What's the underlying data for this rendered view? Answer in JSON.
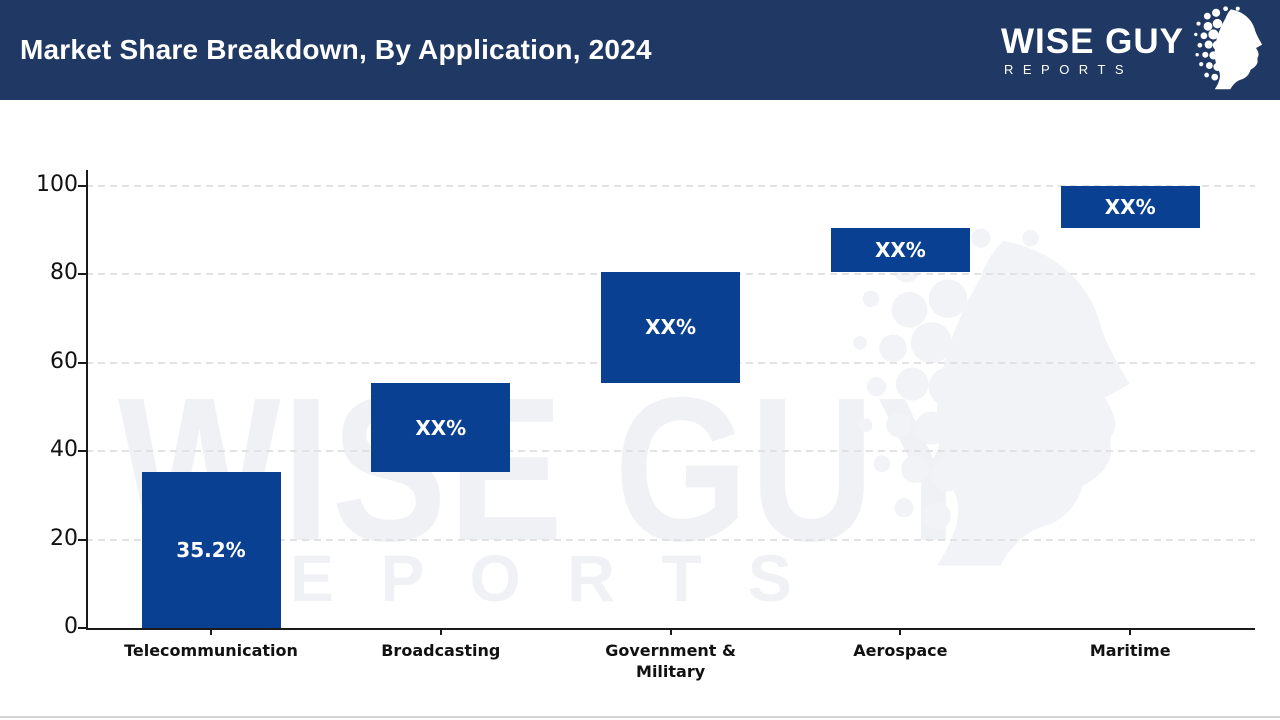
{
  "header": {
    "title": "Market Share Breakdown, By Application, 2024",
    "logo": {
      "brand": "WISE GUY",
      "sub": "REPORTS"
    }
  },
  "watermark": {
    "brand": "WISE GUY",
    "sub": "R E P O R T S"
  },
  "colors": {
    "header_bg": "#1f3864",
    "bar": "#0a4092",
    "axis": "#1a1a1a",
    "grid": "#e2e2e2",
    "watermark": "#f0f1f4",
    "watermark_head": "#f2f3f6",
    "bottom_line": "#d3d3d3"
  },
  "chart_data": {
    "type": "bar",
    "subtype": "waterfall",
    "title": "Market Share Breakdown, By Application, 2024",
    "categories": [
      "Telecommunication",
      "Broadcasting",
      "Government &\nMilitary",
      "Aerospace",
      "Maritime"
    ],
    "segments": [
      {
        "category": "Telecommunication",
        "start": 0,
        "end": 35.2,
        "label": "35.2%"
      },
      {
        "category": "Broadcasting",
        "start": 35.2,
        "end": 55.4,
        "label": "XX%"
      },
      {
        "category": "Government & Military",
        "start": 55.4,
        "end": 80.6,
        "label": "XX%"
      },
      {
        "category": "Aerospace",
        "start": 80.6,
        "end": 90.4,
        "label": "XX%"
      },
      {
        "category": "Maritime",
        "start": 90.4,
        "end": 100,
        "label": "XX%"
      }
    ],
    "ylim": [
      0,
      100
    ],
    "yticks": [
      0,
      20,
      40,
      60,
      80,
      100
    ],
    "grid": "horizontal-dashed",
    "legend": "none",
    "bar_color": "#0a4092",
    "value_label_color": "#ffffff"
  }
}
